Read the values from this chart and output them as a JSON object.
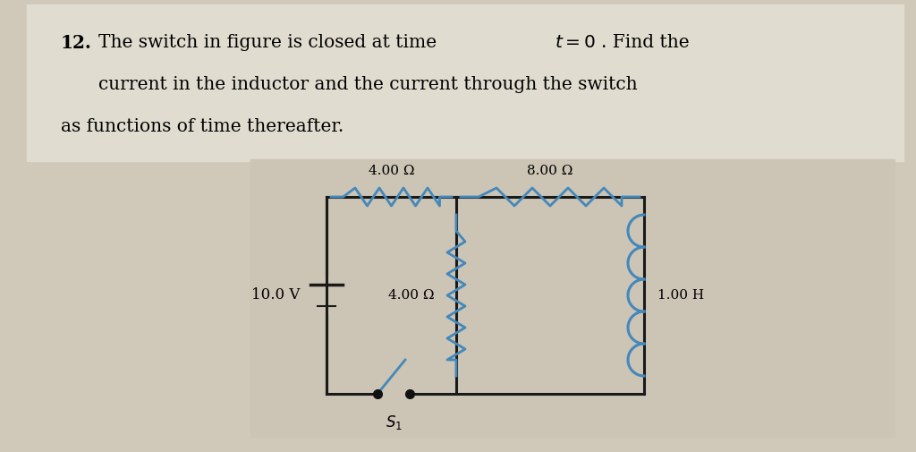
{
  "bg_color_top": "#e8e8e8",
  "bg_color": "#c8c0b0",
  "circuit_color": "#4488bb",
  "wire_color": "#1a1a1a",
  "label_4ohm_top": "4.00 Ω",
  "label_8ohm": "8.00 Ω",
  "label_4ohm_mid": "4.00 Ω",
  "label_1H": "1.00 H",
  "label_10V": "10.0 V",
  "label_switch": "$S_1$",
  "line1": "12. The switch in figure is closed at time ",
  "line1b": "$t = 0$. Find the",
  "line2": "current in the inductor and the current through the switch",
  "line3": "as functions of time thereafter."
}
